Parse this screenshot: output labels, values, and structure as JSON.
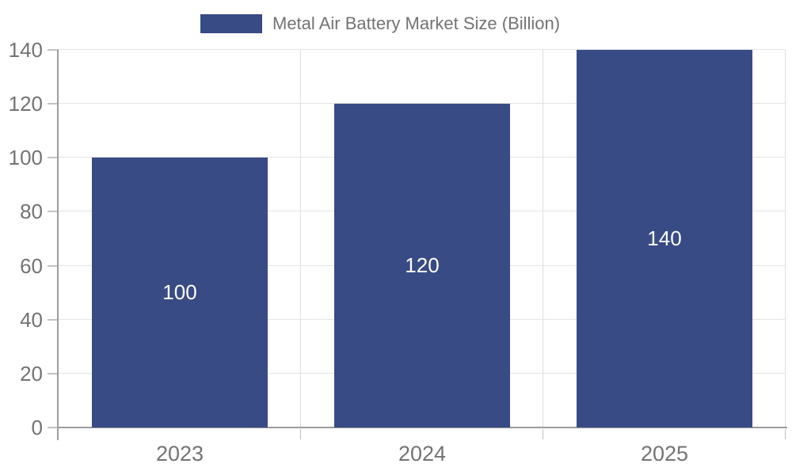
{
  "legend": {
    "label": "Metal Air Battery Market Size (Billion)"
  },
  "chart_data": {
    "type": "bar",
    "title": "Metal Air Battery Market Size (Billion)",
    "categories": [
      "2023",
      "2024",
      "2025"
    ],
    "values": [
      100,
      120,
      140
    ],
    "value_labels": [
      "100",
      "120",
      "140"
    ],
    "series": [
      {
        "name": "Metal Air Battery Market Size (Billion)",
        "values": [
          100,
          120,
          140
        ]
      }
    ],
    "xlabel": "",
    "ylabel": "",
    "ylim": [
      0,
      140
    ],
    "yticks": [
      0,
      20,
      40,
      60,
      80,
      100,
      120,
      140
    ],
    "grid": true,
    "legend_position": "top-center",
    "bar_color": "#384B85",
    "value_label_color": "#FFFFFF",
    "axis_label_color": "#737373",
    "legend_label_color": "#737373",
    "grid_color": "#E4E4E4",
    "split_line_color": "#DEDEDE",
    "tick_color": "#C2C2C2",
    "axis_line_color": "#9C9C9C",
    "background": "#FFFFFF"
  }
}
